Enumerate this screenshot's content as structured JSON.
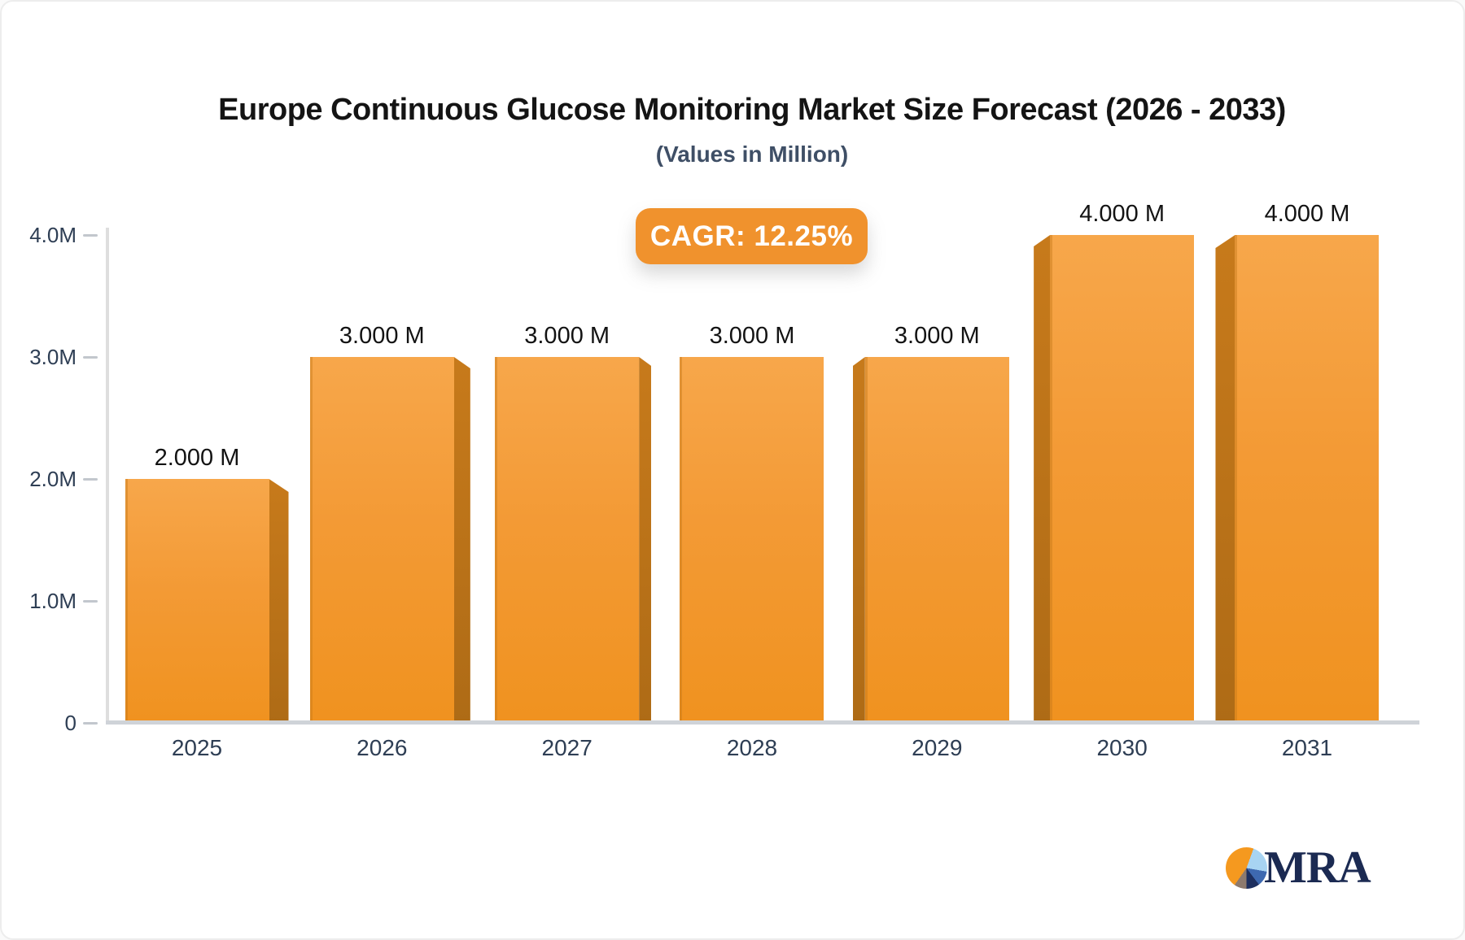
{
  "header": {
    "title": "Europe Continuous Glucose Monitoring Market Size Forecast (2026 - 2033)",
    "subtitle": "(Values in Million)",
    "cagr_badge": "CAGR: 12.25%"
  },
  "chart_data": {
    "type": "bar",
    "title": "Europe Continuous Glucose Monitoring Market Size Forecast (2026 - 2033)",
    "subtitle": "(Values in Million)",
    "annotation": "CAGR: 12.25%",
    "categories": [
      "2025",
      "2026",
      "2027",
      "2028",
      "2029",
      "2030",
      "2031"
    ],
    "values": [
      2.0,
      3.0,
      3.0,
      3.0,
      3.0,
      4.0,
      4.0
    ],
    "value_labels": [
      "2.000 M",
      "3.000 M",
      "3.000 M",
      "3.000 M",
      "3.000 M",
      "4.000 M",
      "4.000 M"
    ],
    "ytick_labels": [
      "0",
      "1.0M",
      "2.0M",
      "3.0M",
      "4.0M"
    ],
    "ytick_values": [
      0,
      1,
      2,
      3,
      4
    ],
    "xlabel": "",
    "ylabel": "",
    "ylim": [
      0,
      4
    ],
    "grid": false,
    "legend": null,
    "style": "3d-perspective-bars"
  },
  "branding": {
    "logo_text": "MRA"
  },
  "colors": {
    "bar_top": "#F7A74B",
    "bar_bottom": "#F0921F",
    "bar_side": "#C77A1B",
    "badge_background": "#F0922D",
    "badge_text": "#ffffff",
    "axis_line": "#cfd3d8",
    "tick_label": "#2e3e54",
    "title_text": "#141414",
    "subtitle_text": "#3f4f66",
    "logo_navy": "#1b2a52",
    "logo_orange": "#F5991F"
  }
}
